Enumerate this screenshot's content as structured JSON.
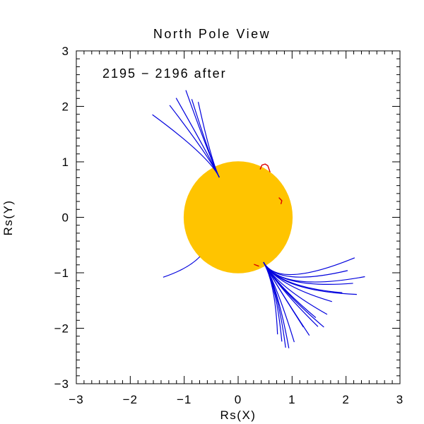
{
  "title": "North Pole View",
  "annotation": "2195 − 2196 after",
  "chart_data": {
    "type": "line",
    "title": "North Pole View",
    "annotation": "2195 − 2196 after",
    "xlabel": "Rs(X)",
    "ylabel": "Rs(Y)",
    "xlim": [
      -3,
      3
    ],
    "ylim": [
      -3,
      3
    ],
    "xticks": [
      -3,
      -2,
      -1,
      0,
      1,
      2,
      3
    ],
    "yticks": [
      -3,
      -2,
      -1,
      0,
      1,
      2,
      3
    ],
    "xtick_labels": [
      "−3",
      "−2",
      "−1",
      "0",
      "1",
      "2",
      "3"
    ],
    "ytick_labels": [
      "−3",
      "−2",
      "−1",
      "0",
      "1",
      "2",
      "3"
    ],
    "minor_divisions": 7,
    "grid": false,
    "legend": "none",
    "frame_color": "#000000",
    "background": "#ffffff",
    "sun": {
      "cx": 0,
      "cy": 0,
      "r": 1.01,
      "color": "#FFC400"
    },
    "field_line_color": "#0000DD",
    "red_feature_color": "#DD0000",
    "field_line_bundles": [
      {
        "name": "north-fan",
        "foot": [
          -0.35,
          0.72
        ],
        "bend": 0.25,
        "tips": [
          [
            -1.59,
            1.85
          ],
          [
            -1.27,
            2.02
          ],
          [
            -1.15,
            2.15
          ],
          [
            -0.97,
            2.29
          ],
          [
            -0.86,
            2.13
          ],
          [
            -0.74,
            2.08
          ]
        ]
      },
      {
        "name": "southeast-fan",
        "foot": [
          0.47,
          -0.81
        ],
        "bend": 0.33,
        "tips": [
          [
            2.16,
            -0.73
          ],
          [
            2.03,
            -0.96
          ],
          [
            2.35,
            -1.07
          ],
          [
            2.13,
            -1.19
          ],
          [
            2.2,
            -1.39
          ],
          [
            1.93,
            -1.36
          ],
          [
            1.74,
            -1.52
          ],
          [
            1.65,
            -1.75
          ],
          [
            1.44,
            -1.81
          ],
          [
            1.59,
            -1.98
          ],
          [
            1.48,
            -1.97
          ],
          [
            1.21,
            -1.98
          ],
          [
            1.32,
            -2.13
          ],
          [
            1.04,
            -2.25
          ],
          [
            0.94,
            -2.36
          ],
          [
            0.88,
            -2.35
          ],
          [
            0.81,
            -2.24
          ],
          [
            0.73,
            -2.11
          ]
        ]
      },
      {
        "name": "southwest-line",
        "foot": [
          -0.71,
          -0.71
        ],
        "bend": 0.4,
        "tips": [
          [
            -1.39,
            -1.08
          ]
        ]
      }
    ],
    "red_marks": [
      {
        "name": "prominence-loop",
        "points": [
          [
            0.41,
            0.87
          ],
          [
            0.44,
            0.94
          ],
          [
            0.5,
            0.96
          ],
          [
            0.55,
            0.93
          ],
          [
            0.59,
            0.82
          ]
        ]
      },
      {
        "name": "prominence-hook",
        "points": [
          [
            0.76,
            0.35
          ],
          [
            0.81,
            0.3
          ],
          [
            0.795,
            0.245
          ]
        ]
      },
      {
        "name": "foot-dash",
        "points": [
          [
            0.3,
            -0.85
          ],
          [
            0.38,
            -0.88
          ]
        ]
      }
    ]
  }
}
